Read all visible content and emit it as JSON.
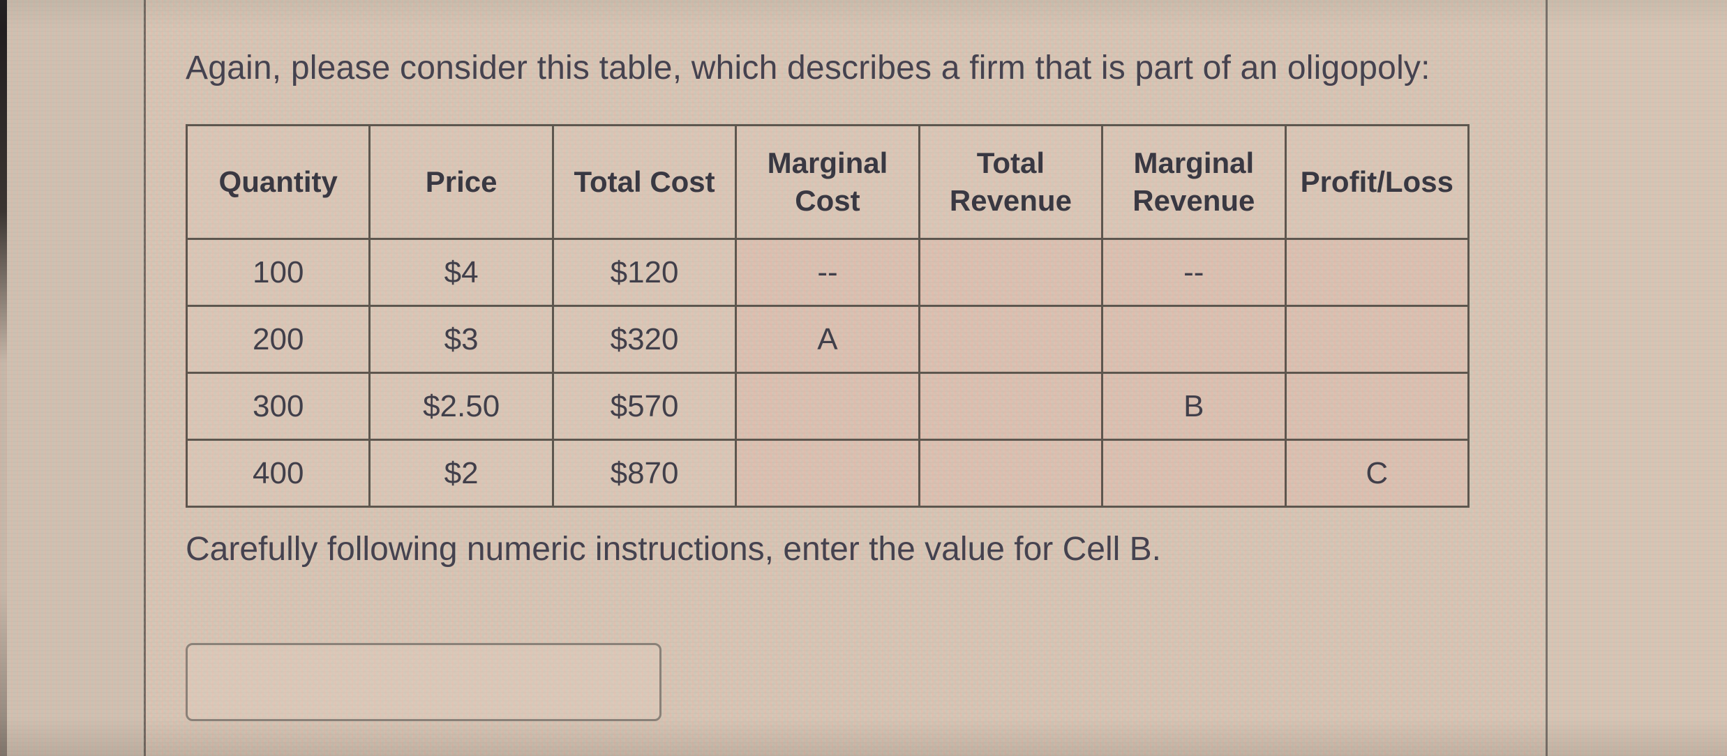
{
  "question": {
    "title": "Again, please consider this table, which describes a firm that is part of an oligopoly:",
    "instruction": "Carefully following numeric instructions, enter the value for Cell B."
  },
  "table": {
    "headers": [
      "Quantity",
      "Price",
      "Total Cost",
      "Marginal Cost",
      "Total Revenue",
      "Marginal Revenue",
      "Profit/Loss"
    ],
    "rows": [
      [
        "100",
        "$4",
        "$120",
        "--",
        "",
        "--",
        ""
      ],
      [
        "200",
        "$3",
        "$320",
        "A",
        "",
        "",
        ""
      ],
      [
        "300",
        "$2.50",
        "$570",
        "",
        "",
        "B",
        ""
      ],
      [
        "400",
        "$2",
        "$870",
        "",
        "",
        "",
        "C"
      ]
    ]
  },
  "input": {
    "value": "",
    "placeholder": ""
  },
  "colors": {
    "background": "#d9c6b6",
    "text": "#45424f",
    "table_border": "#5d564e",
    "input_border": "#8a8178"
  }
}
